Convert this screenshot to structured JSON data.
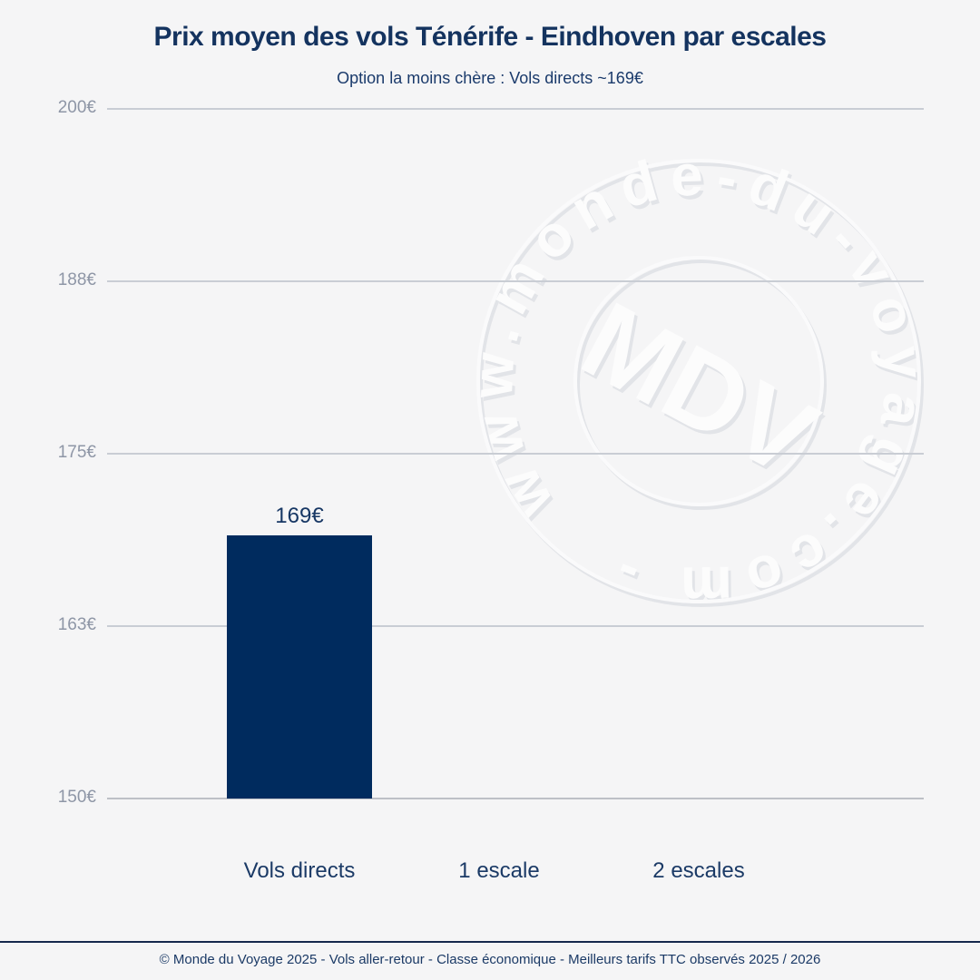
{
  "chart_data": {
    "type": "bar",
    "title": "Prix moyen des vols Ténérife - Eindhoven par escales",
    "subtitle": "Option la moins chère : Vols directs ~169€",
    "categories": [
      "Vols directs",
      "1 escale",
      "2 escales"
    ],
    "values": [
      169,
      null,
      null
    ],
    "value_labels": [
      "169€",
      "",
      ""
    ],
    "y_ticks": [
      "200€",
      "188€",
      "175€",
      "163€",
      "150€"
    ],
    "ylim": [
      150,
      200
    ],
    "grid": true,
    "legend": "none",
    "bar_color": "#002b5e",
    "colors": {
      "background": "#f5f5f6",
      "title": "#14335f",
      "subtitle": "#1a3a6b",
      "gridline": "#c9cdd4",
      "axis_line": "#bdc0c6",
      "y_tick": "#8e96a6",
      "x_tick": "#1b3a66",
      "value_label": "#173764"
    }
  },
  "watermark": {
    "ring_text": "www.monde-du-voyage.com - ",
    "center_text": "MDV"
  },
  "footer": {
    "text": "© Monde du Voyage 2025 - Vols aller-retour - Classe économique - Meilleurs tarifs TTC observés 2025 / 2026"
  }
}
